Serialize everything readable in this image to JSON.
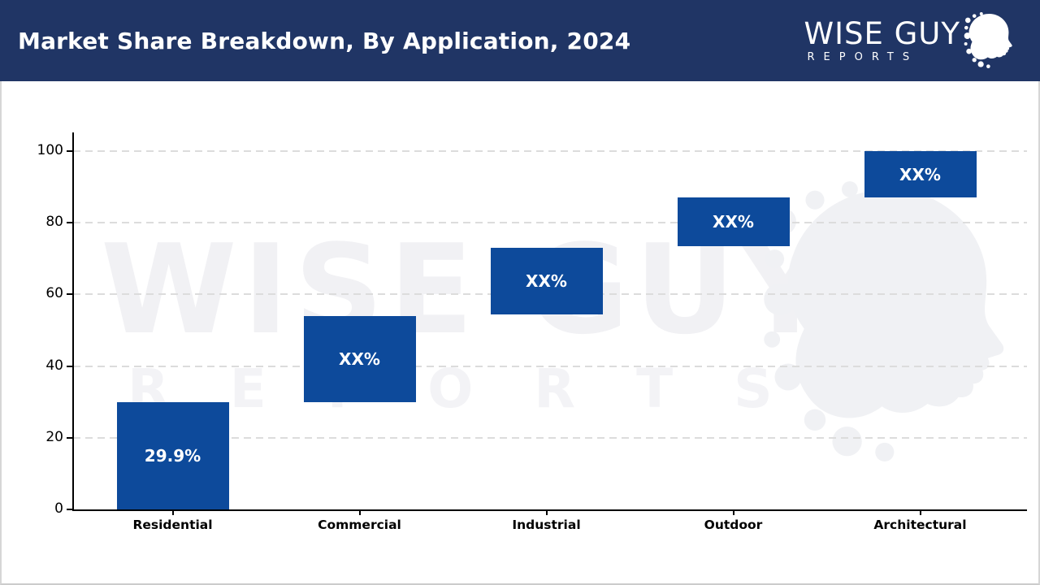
{
  "header": {
    "title": "Market Share Breakdown, By Application, 2024",
    "logo": {
      "brand": "WISE GUY",
      "tagline": "REPORTS"
    }
  },
  "watermark": {
    "brand": "WISE GUY",
    "tagline": "R E P O R T S"
  },
  "chart_data": {
    "type": "bar",
    "subtype": "waterfall",
    "title": "Market Share Breakdown, By Application, 2024",
    "xlabel": "",
    "ylabel": "",
    "categories": [
      "Residential",
      "Commercial",
      "Industrial",
      "Outdoor",
      "Architectural"
    ],
    "bars": [
      {
        "category": "Residential",
        "start": 0,
        "end": 29.9,
        "label": "29.9%"
      },
      {
        "category": "Commercial",
        "start": 30,
        "end": 54,
        "label": "XX%"
      },
      {
        "category": "Industrial",
        "start": 54.5,
        "end": 73,
        "label": "XX%"
      },
      {
        "category": "Outdoor",
        "start": 73.5,
        "end": 87,
        "label": "XX%"
      },
      {
        "category": "Architectural",
        "start": 87,
        "end": 100,
        "label": "XX%"
      }
    ],
    "y_ticks": [
      0,
      20,
      40,
      60,
      80,
      100
    ],
    "ylim": [
      0,
      105
    ],
    "grid": "horizontal-dashed",
    "legend": "none",
    "bar_color": "#0d4a9b",
    "bar_label_color": "#ffffff",
    "axis_color": "#000000",
    "gridline_color": "#dcdcdc"
  },
  "colors": {
    "header_bg": "#203565",
    "background": "#ffffff",
    "watermark": "#f0f1f4"
  }
}
